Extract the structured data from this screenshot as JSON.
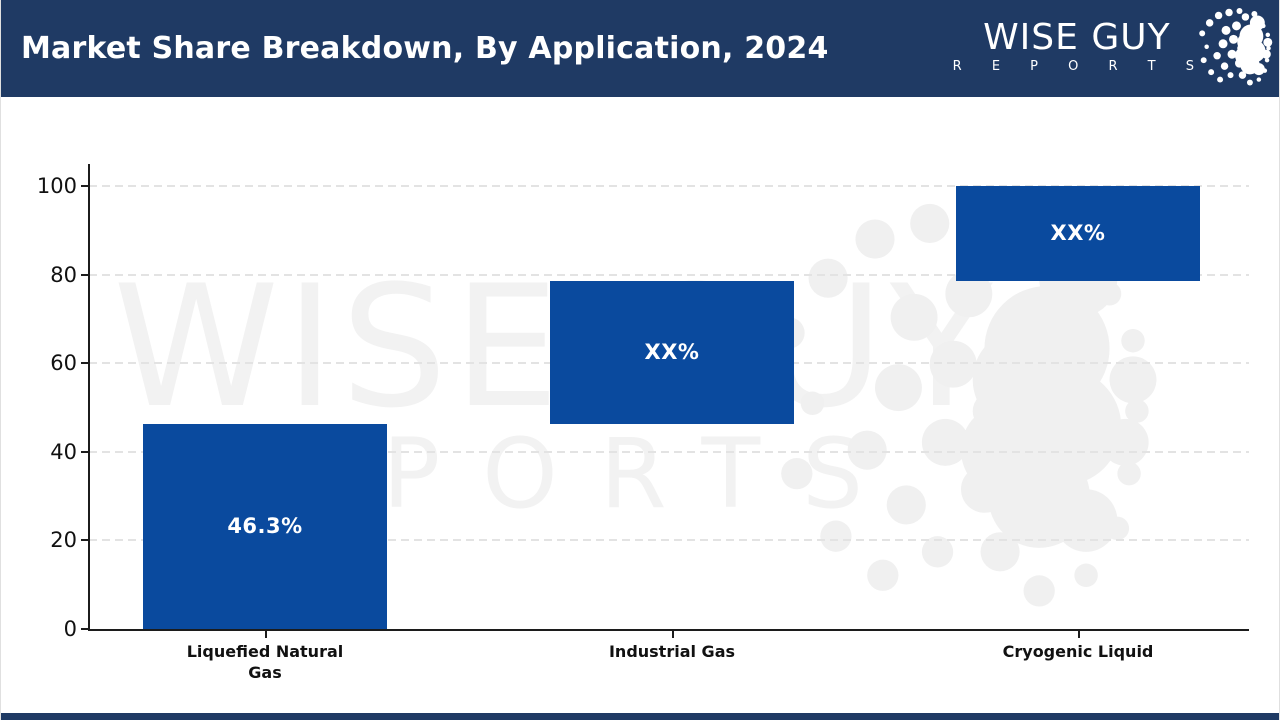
{
  "header": {
    "title": "Market Share Breakdown, By Application, 2024",
    "background_color": "#1f3a64",
    "logo": {
      "line1": "WISE GUY",
      "line2": "R E P O R T S"
    }
  },
  "watermark": {
    "line1": "WISE GUY",
    "line2": "REPORTS"
  },
  "chart_data": {
    "type": "bar",
    "subtype": "waterfall",
    "title": "Market Share Breakdown, By Application, 2024",
    "categories": [
      "Liquefied Natural Gas",
      "Industrial Gas",
      "Cryogenic Liquid"
    ],
    "category_lines": [
      [
        "Liquefied Natural",
        "Gas"
      ],
      [
        "Industrial Gas"
      ],
      [
        "Cryogenic Liquid"
      ]
    ],
    "segments": [
      {
        "category": "Liquefied Natural Gas",
        "start": 0,
        "end": 46.3,
        "label": "46.3%"
      },
      {
        "category": "Industrial Gas",
        "start": 46.3,
        "end": 78.6,
        "label": "XX%"
      },
      {
        "category": "Cryogenic Liquid",
        "start": 78.6,
        "end": 100,
        "label": "XX%"
      }
    ],
    "yticks": [
      0,
      20,
      40,
      60,
      80,
      100
    ],
    "ylim": [
      0,
      105
    ],
    "ylabel": "",
    "xlabel": "",
    "legend": "none",
    "grid": "horizontal-dashed",
    "bar_color": "#0a4a9e",
    "bar_label_color": "#ffffff",
    "gridline_color": "#e3e3e3",
    "axis_color": "#1c1c1c"
  }
}
